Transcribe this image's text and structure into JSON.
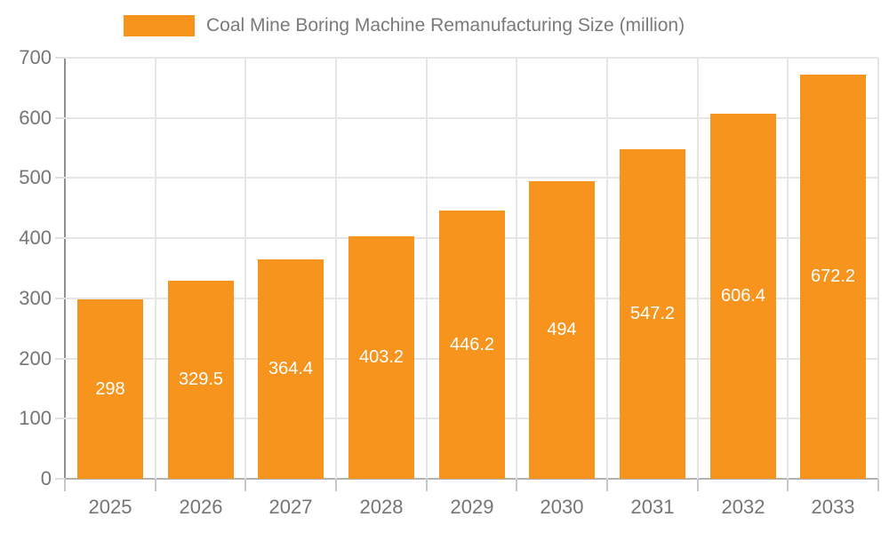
{
  "chart_data": {
    "type": "bar",
    "title": "Coal Mine Boring Machine Remanufacturing Size (million)",
    "legend": {
      "label": "Coal Mine Boring Machine Remanufacturing Size (million)",
      "position": "top"
    },
    "categories": [
      "2025",
      "2026",
      "2027",
      "2028",
      "2029",
      "2030",
      "2031",
      "2032",
      "2033"
    ],
    "series": [
      {
        "name": "Coal Mine Boring Machine Remanufacturing Size (million)",
        "values": [
          298,
          329.5,
          364.4,
          403.2,
          446.2,
          494,
          547.2,
          606.4,
          672.2
        ],
        "value_labels": [
          "298",
          "329.5",
          "364.4",
          "403.2",
          "446.2",
          "494",
          "547.2",
          "606.4",
          "672.2"
        ]
      }
    ],
    "xlabel": "",
    "ylabel": "",
    "ylim": [
      0,
      700
    ],
    "yticks": [
      0,
      100,
      200,
      300,
      400,
      500,
      600,
      700
    ],
    "grid": true,
    "colors": {
      "bar": "#F7941E",
      "bar_value_label": "#FFFFFF",
      "axis_line": "#8F8F8F",
      "gridline": "#E6E6E6",
      "tick_label": "#757575",
      "legend_text": "#7A7A7A"
    }
  }
}
